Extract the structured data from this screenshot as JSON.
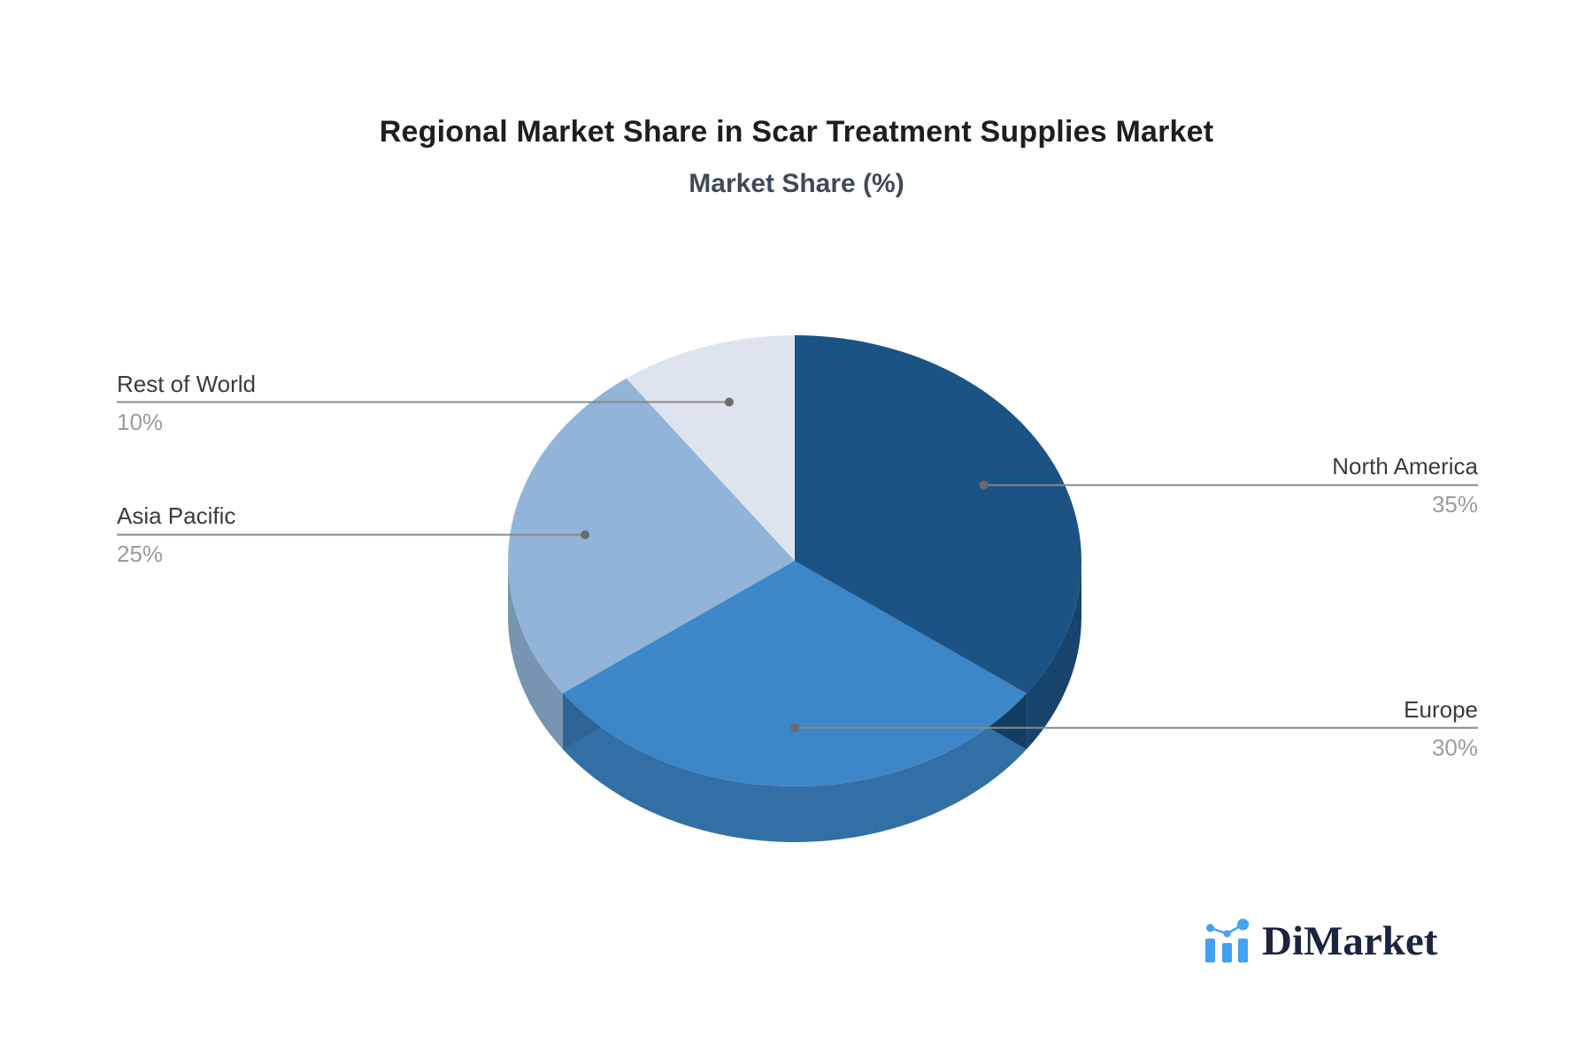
{
  "chart": {
    "title": "Regional Market Share in Scar Treatment Supplies Market",
    "subtitle": "Market Share (%)",
    "title_color": "#1e1e1e",
    "subtitle_color": "#3e4a5a",
    "background_color": "#ffffff"
  },
  "chart_data": {
    "type": "pie",
    "style": "3d",
    "title": "Regional Market Share in Scar Treatment Supplies Market",
    "subtitle": "Market Share (%)",
    "unit": "%",
    "start_angle_deg": 0,
    "direction": "clockwise",
    "legend_position": "none",
    "labels_layout": "callout-lines",
    "slices": [
      {
        "label": "North America",
        "value": 35,
        "color": "#1b5385",
        "label_side": "right"
      },
      {
        "label": "Europe",
        "value": 30,
        "color": "#3d87c9",
        "label_side": "right"
      },
      {
        "label": "Asia Pacific",
        "value": 25,
        "color": "#91b4d8",
        "label_side": "left"
      },
      {
        "label": "Rest of World",
        "value": 10,
        "color": "#dde4ee",
        "label_side": "left"
      }
    ]
  },
  "callouts": {
    "line_color": "#888888",
    "dot_color": "#6b6b6b",
    "name_color": "#3b3b3b",
    "percent_color": "#9b9b9b"
  },
  "logo": {
    "text": "DiMarket",
    "text_color": "#1b2540",
    "icon": "bar-chart-trend-icon",
    "icon_color": "#42a0f5"
  }
}
